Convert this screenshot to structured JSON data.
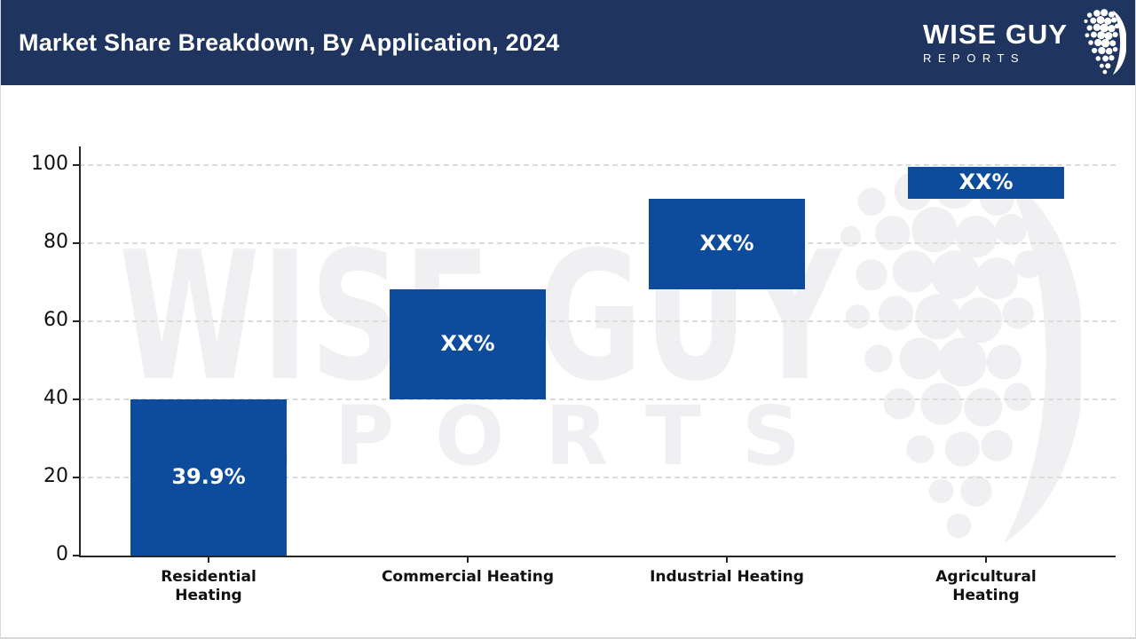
{
  "header": {
    "title": "Market Share Breakdown, By Application, 2024",
    "logo": {
      "line1": "WISE GUY",
      "line2": "REPORTS"
    }
  },
  "watermark": {
    "line1": "WISE GUY",
    "line2": "REPORTS"
  },
  "chart_data": {
    "type": "bar",
    "subtype": "waterfall",
    "title": "Market Share Breakdown, By Application, 2024",
    "categories": [
      "Residential\nHeating",
      "Commercial Heating",
      "Industrial Heating",
      "Agricultural\nHeating"
    ],
    "series": [
      {
        "name": "Market Share",
        "segments": [
          {
            "category": "Residential Heating",
            "start": 0,
            "end": 39.9,
            "label": "39.9%"
          },
          {
            "category": "Commercial Heating",
            "start": 39.9,
            "end": 68.1,
            "label": "XX%"
          },
          {
            "category": "Industrial Heating",
            "start": 68.1,
            "end": 91.4,
            "label": "XX%"
          },
          {
            "category": "Agricultural Heating",
            "start": 91.4,
            "end": 99.6,
            "label": "XX%"
          }
        ]
      }
    ],
    "xlabel": "",
    "ylabel": "",
    "ylim": [
      0,
      105
    ],
    "yticks": [
      0,
      20,
      40,
      60,
      80,
      100
    ],
    "grid": true,
    "grid_style": "dashed",
    "legend": "none",
    "bar_color": "#0d4b9c",
    "label_color": "#ffffff",
    "axis_color": "#262626",
    "grid_color": "#dcdcdc",
    "tick_label_color": "#111111"
  },
  "colors": {
    "header_bg": "#1f3560",
    "watermark": "#f0f0f2",
    "background": "#ffffff"
  }
}
